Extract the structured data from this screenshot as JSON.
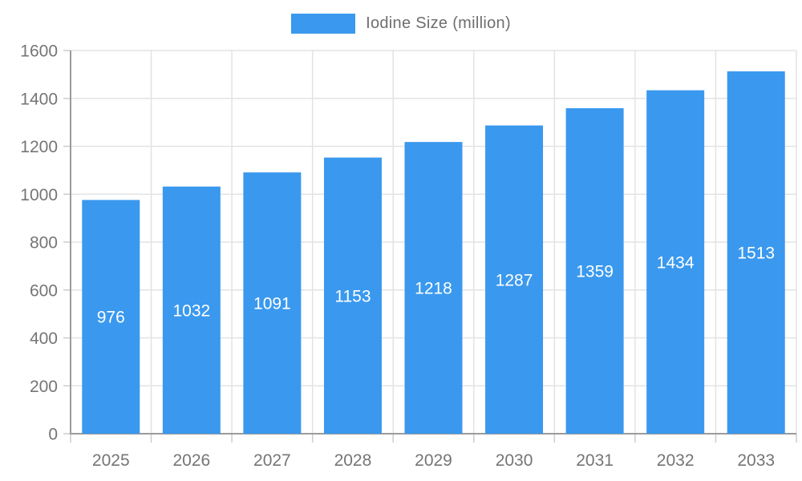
{
  "legend": {
    "label": "Iodine Size (million)",
    "swatch_color": "#3a99ee"
  },
  "chart_data": {
    "type": "bar",
    "title": "",
    "series_name": "Iodine Size (million)",
    "categories": [
      "2025",
      "2026",
      "2027",
      "2028",
      "2029",
      "2030",
      "2031",
      "2032",
      "2033"
    ],
    "values": [
      976,
      1032,
      1091,
      1153,
      1218,
      1287,
      1359,
      1434,
      1513
    ],
    "xlabel": "",
    "ylabel": "",
    "ylim": [
      0,
      1600
    ],
    "ytick_step": 200,
    "ytick_labels": [
      "0",
      "200",
      "400",
      "600",
      "800",
      "1000",
      "1200",
      "1400",
      "1600"
    ],
    "grid": true,
    "legend_position": "top-center",
    "bar_color": "#3a99ee",
    "value_label_color": "#ffffff",
    "axis_color": "#9b9b9b",
    "grid_color": "#e3e3e3",
    "tick_color": "#cccccc",
    "tick_label_color": "#757575"
  }
}
